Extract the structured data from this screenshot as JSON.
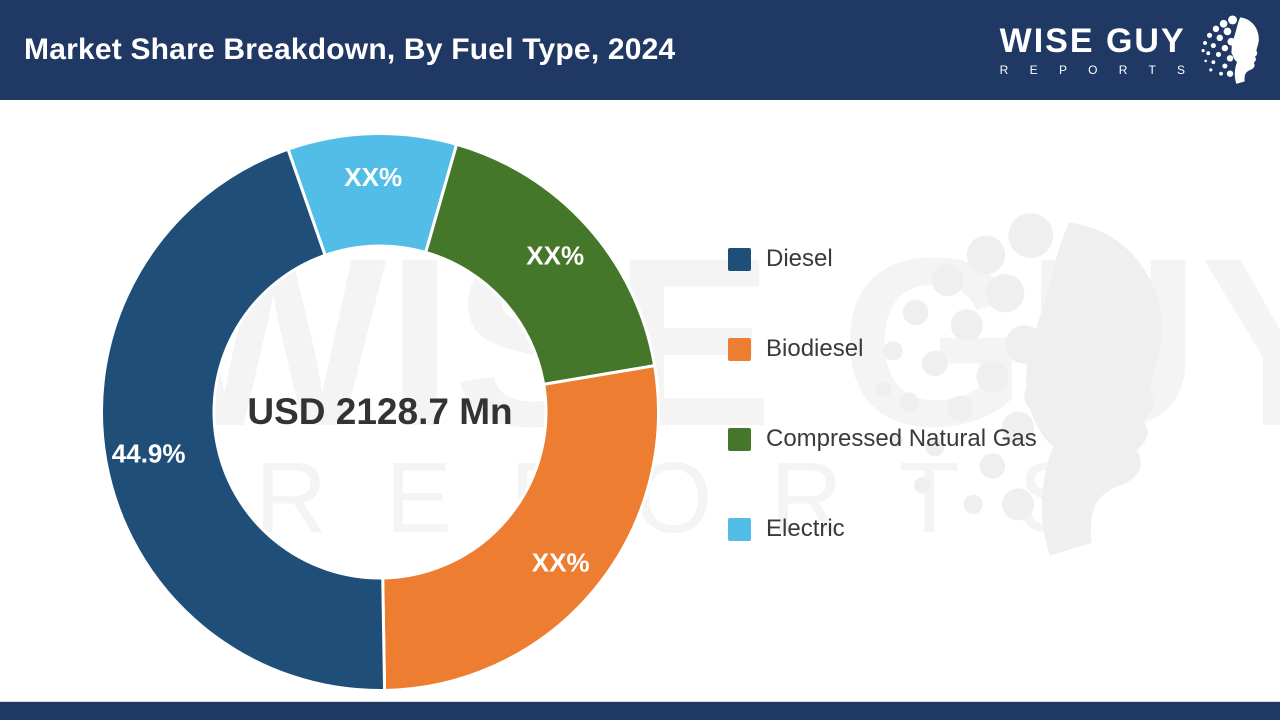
{
  "header": {
    "title": "Market Share Breakdown, By Fuel Type, 2024",
    "logo": {
      "name": "WISE GUY",
      "sub": "R E P O R T S"
    }
  },
  "watermark": {
    "line1": "WISE GUY",
    "line2": "REPORTS"
  },
  "chart_data": {
    "type": "pie",
    "donut": true,
    "title": "Market Share Breakdown, By Fuel Type, 2024",
    "center_label": "USD 2128.7 Mn",
    "start_angle_deg": -19.3,
    "segments": [
      {
        "name": "Electric",
        "color": "#52BEE7",
        "value_pct": 9.8,
        "data_label": "XX%"
      },
      {
        "name": "Compressed Natural Gas",
        "color": "#45772B",
        "value_pct": 17.9,
        "data_label": "XX%"
      },
      {
        "name": "Biodiesel",
        "color": "#ED7D31",
        "value_pct": 27.4,
        "data_label": "XX%"
      },
      {
        "name": "Diesel",
        "color": "#1F4E79",
        "value_pct": 44.9,
        "data_label": "44.9%"
      }
    ],
    "legend_position": "right",
    "legend": [
      {
        "label": "Diesel",
        "color": "#1F4E79"
      },
      {
        "label": "Biodiesel",
        "color": "#ED7D31"
      },
      {
        "label": "Compressed Natural Gas",
        "color": "#45772B"
      },
      {
        "label": "Electric",
        "color": "#52BEE7"
      }
    ]
  },
  "colors": {
    "header_bg": "#1F3864",
    "footer_bg": "#1F3864",
    "center_text": "#333333",
    "legend_text": "#3a3a3a",
    "watermark": "#f4f4f4"
  }
}
